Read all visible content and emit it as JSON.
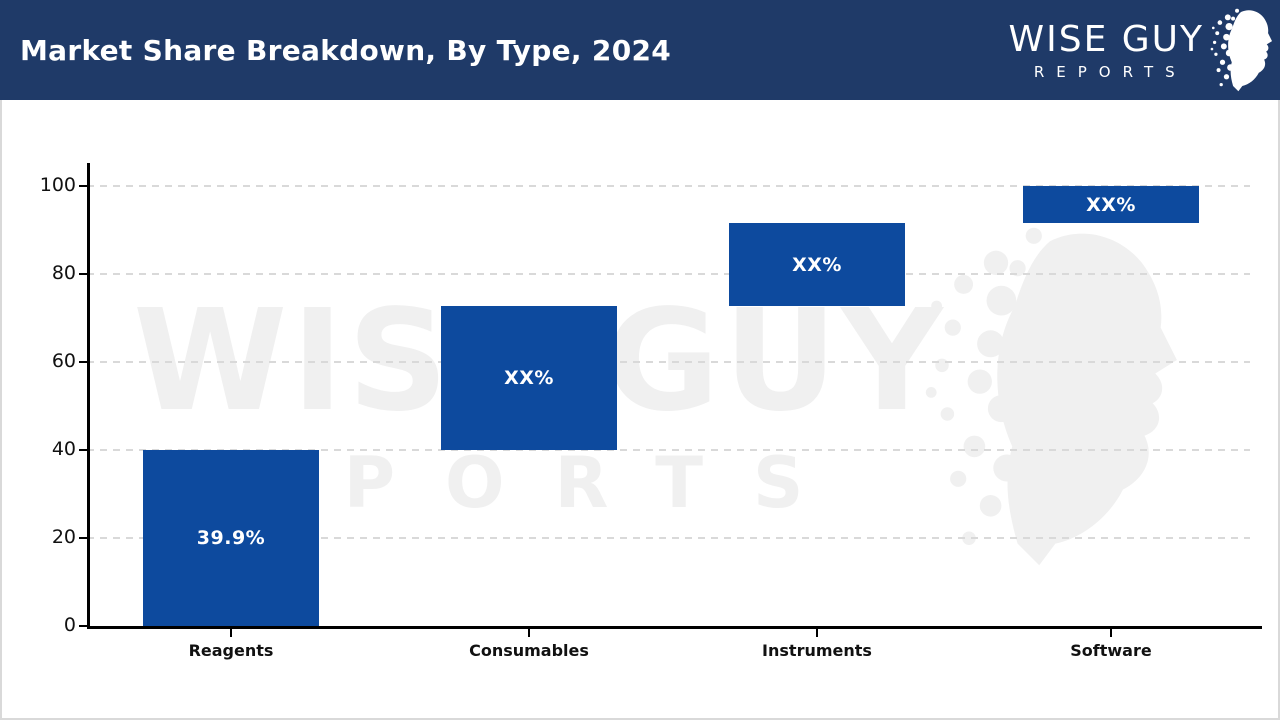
{
  "header": {
    "title": "Market Share Breakdown, By Type, 2024",
    "background_color": "#1f3a68",
    "logo": {
      "line1": "WISE GUY",
      "line2": "REPORTS"
    }
  },
  "watermark": {
    "line1": "WISE GUY",
    "line2": "REPORTS"
  },
  "chart_data": {
    "type": "bar",
    "subtype": "waterfall",
    "title": "Market Share Breakdown, By Type, 2024",
    "categories": [
      "Reagents",
      "Consumables",
      "Instruments",
      "Software"
    ],
    "segments": [
      {
        "category": "Reagents",
        "start": 0,
        "end": 39.9,
        "label": "39.9%"
      },
      {
        "category": "Consumables",
        "start": 39.9,
        "end": 72.7,
        "label": "XX%"
      },
      {
        "category": "Instruments",
        "start": 72.7,
        "end": 91.5,
        "label": "XX%"
      },
      {
        "category": "Software",
        "start": 91.5,
        "end": 100,
        "label": "XX%"
      }
    ],
    "yticks": [
      0,
      20,
      40,
      60,
      80,
      100
    ],
    "ylim": [
      0,
      105
    ],
    "xlabel": "",
    "ylabel": "",
    "grid": "horizontal-dashed",
    "legend": "none",
    "bar_color": "#0d4a9e",
    "bar_label_color": "#ffffff",
    "grid_color": "#d9d9d9",
    "watermark_color": "#f0f0f0"
  }
}
